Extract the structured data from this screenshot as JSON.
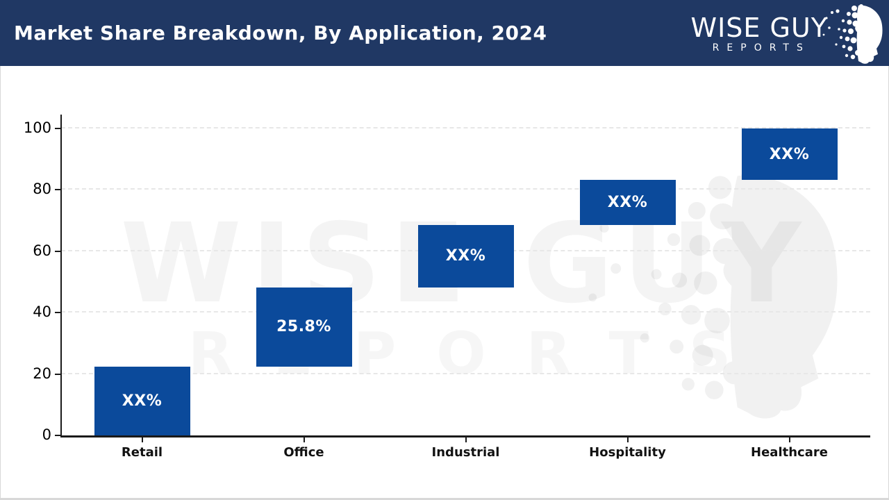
{
  "header": {
    "title": "Market Share Breakdown, By Application, 2024",
    "logo": {
      "line1": "WISE GUY",
      "line2": "REPORTS"
    }
  },
  "watermark": {
    "line1": "WISE GUY",
    "line2": "REPORTS"
  },
  "colors": {
    "header_bg": "#203864",
    "bar": "#0b4a9b",
    "grid": "#e7e7e7",
    "axis": "#1a1a1a",
    "bar_label": "#ffffff"
  },
  "chart_data": {
    "type": "bar",
    "subtype": "waterfall-floating-bars",
    "title": "Market Share Breakdown, By Application, 2024",
    "categories": [
      "Retail",
      "Office",
      "Industrial",
      "Hospitality",
      "Healthcare"
    ],
    "segments": [
      {
        "category": "Retail",
        "start": 0,
        "end": 22.5,
        "label": "XX%"
      },
      {
        "category": "Office",
        "start": 22.5,
        "end": 48.3,
        "label": "25.8%"
      },
      {
        "category": "Industrial",
        "start": 48.3,
        "end": 68.5,
        "label": "XX%"
      },
      {
        "category": "Hospitality",
        "start": 68.5,
        "end": 83.2,
        "label": "XX%"
      },
      {
        "category": "Healthcare",
        "start": 83.2,
        "end": 100,
        "label": "XX%"
      }
    ],
    "xlabel": "",
    "ylabel": "",
    "ylim": [
      0,
      100
    ],
    "yticks": [
      0,
      20,
      40,
      60,
      80,
      100
    ],
    "grid": "horizontal-dashed",
    "legend": "none"
  }
}
